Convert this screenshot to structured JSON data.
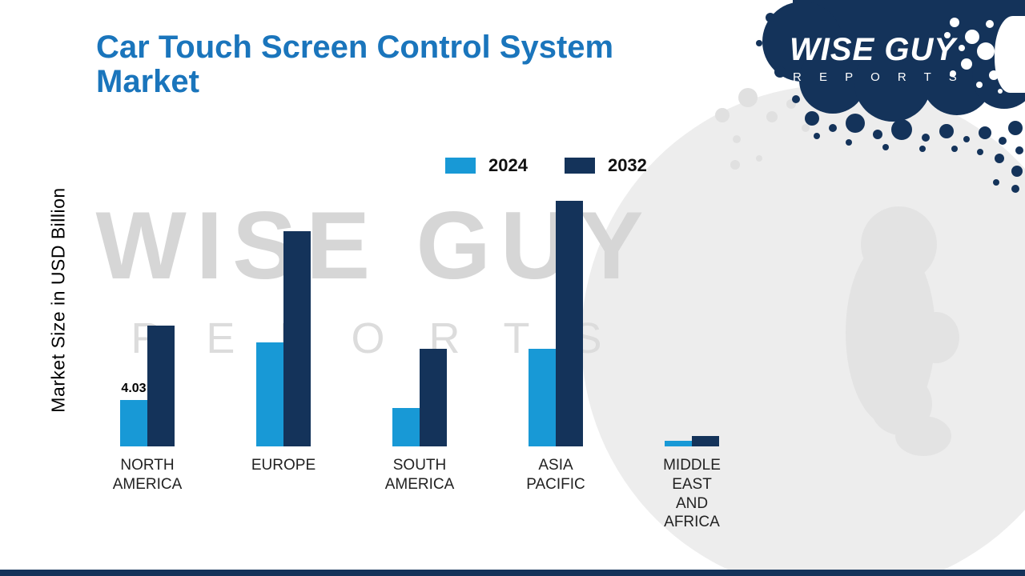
{
  "page": {
    "title": "Car Touch Screen Control System Market"
  },
  "colors": {
    "title_blue": "#1a75bc",
    "accent_blue": "#1899d6",
    "brand_navy": "#14335a",
    "watermark_gray": "#d6d6d6"
  },
  "logo": {
    "name": "WISE GUY Reports",
    "line1": "WISE GUY",
    "line2": "R E P O R T S"
  },
  "watermark": {
    "line1": "WISE GUY",
    "line2": "R E P O R T S"
  },
  "chart_data": {
    "type": "bar",
    "title": "Car Touch Screen Control System Market",
    "ylabel": "Market Size in USD Billion",
    "xlabel": "",
    "categories": [
      "NORTH AMERICA",
      "EUROPE",
      "SOUTH AMERICA",
      "ASIA PACIFIC",
      "MIDDLE EAST AND AFRICA"
    ],
    "series": [
      {
        "name": "2024",
        "color": "#1899d6",
        "values": [
          4.03,
          9.0,
          3.3,
          8.5,
          0.5
        ]
      },
      {
        "name": "2032",
        "color": "#14335a",
        "values": [
          10.5,
          18.7,
          8.5,
          21.3,
          0.9
        ]
      }
    ],
    "annotations": [
      {
        "series": "2024",
        "category_index": 0,
        "text": "4.03"
      }
    ],
    "ylim": [
      0,
      22
    ],
    "unit": "USD Billion",
    "legend_position": "top-center",
    "grid": false
  }
}
